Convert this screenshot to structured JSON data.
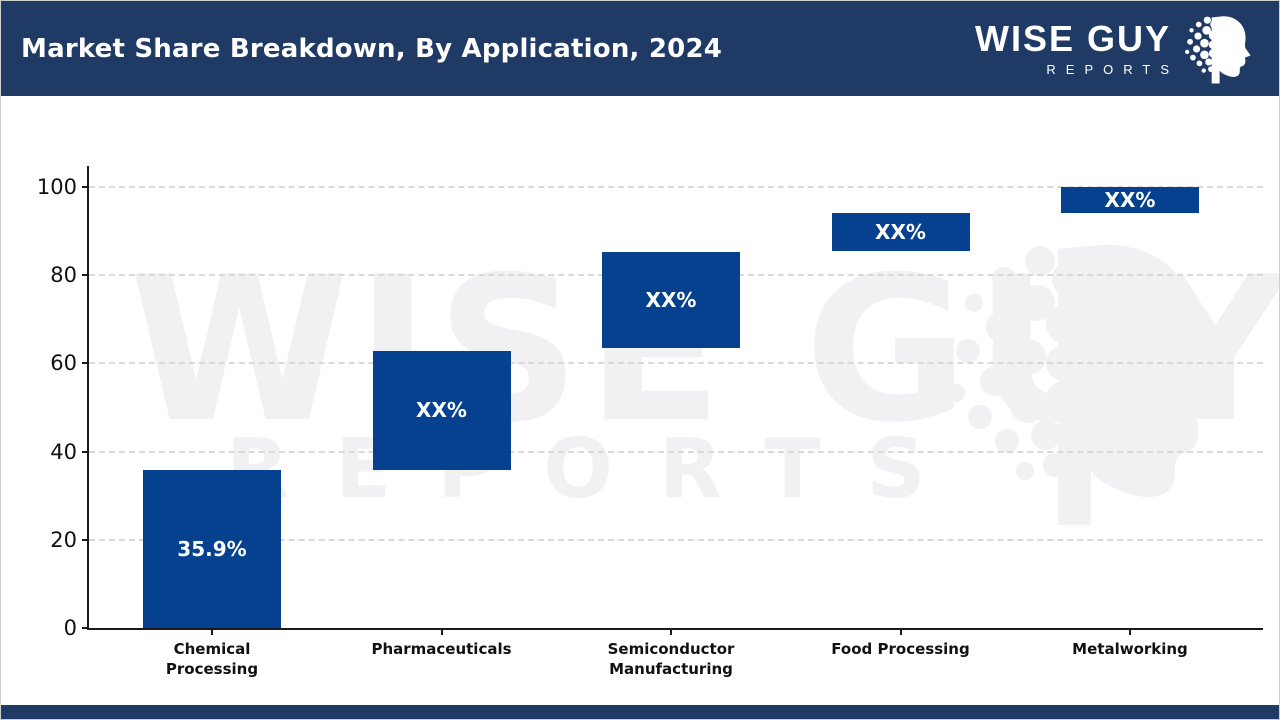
{
  "header": {
    "title": "Market Share Breakdown, By Application, 2024",
    "logo": {
      "line1": "WISE GUY",
      "line2": "REPORTS"
    }
  },
  "watermark": {
    "line1": "WISE GUY",
    "line2": "REPORTS"
  },
  "colors": {
    "header_bg": "#203a66",
    "bar": "#05418f",
    "bar_label": "#ffffff",
    "gridline": "#d9d9d9",
    "axis": "#1a1a1a",
    "watermark": "#f1f1f4"
  },
  "chart_data": {
    "type": "bar",
    "subtype": "waterfall",
    "title": "Market Share Breakdown, By Application, 2024",
    "unit": "percent market share",
    "categories": [
      "Chemical\nProcessing",
      "Pharmaceuticals",
      "Semiconductor\nManufacturing",
      "Food Processing",
      "Metalworking"
    ],
    "segments": [
      {
        "category": "Chemical Processing",
        "start": 0,
        "end": 35.9,
        "label": "35.9%"
      },
      {
        "category": "Pharmaceuticals",
        "start": 35.9,
        "end": 62.9,
        "label": "XX%"
      },
      {
        "category": "Semiconductor Manufacturing",
        "start": 63.4,
        "end": 85.2,
        "label": "XX%"
      },
      {
        "category": "Food Processing",
        "start": 85.6,
        "end": 94.1,
        "label": "XX%"
      },
      {
        "category": "Metalworking",
        "start": 94.1,
        "end": 99.9,
        "label": "XX%"
      }
    ],
    "y_ticks": [
      0,
      20,
      40,
      60,
      80,
      100
    ],
    "ylim": [
      0,
      105
    ],
    "xlabel": "",
    "ylabel": "",
    "grid": "horizontal-dashed",
    "legend": "none"
  }
}
